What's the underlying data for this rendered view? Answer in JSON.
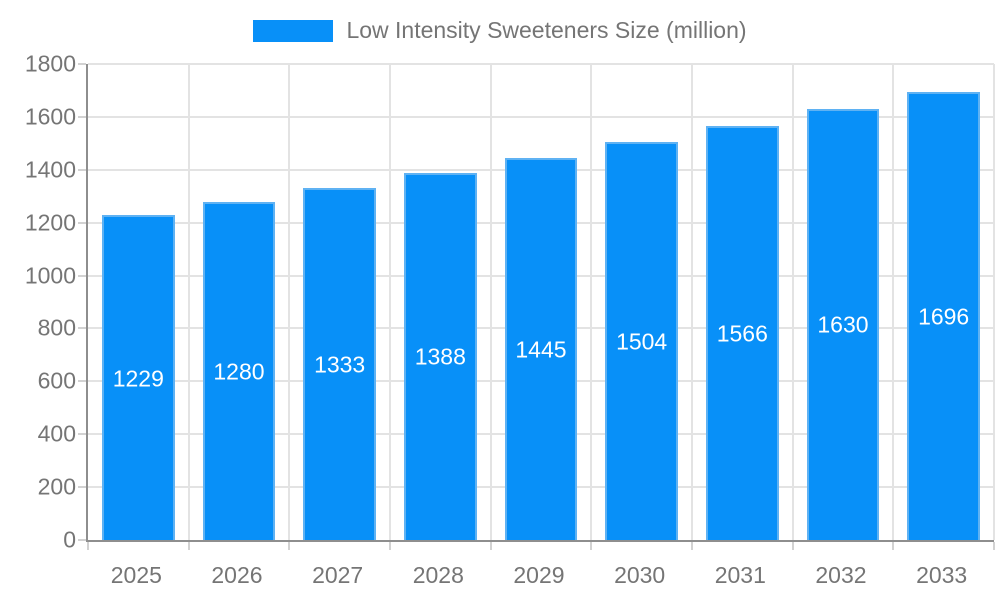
{
  "legend": {
    "label": "Low Intensity Sweeteners Size (million)",
    "swatch_color": "#0890F8"
  },
  "chart_data": {
    "type": "bar",
    "title": "Low Intensity Sweeteners Size (million)",
    "categories": [
      "2025",
      "2026",
      "2027",
      "2028",
      "2029",
      "2030",
      "2031",
      "2032",
      "2033"
    ],
    "values": [
      1229,
      1280,
      1333,
      1388,
      1445,
      1504,
      1566,
      1630,
      1696
    ],
    "xlabel": "",
    "ylabel": "",
    "ylim": [
      0,
      1800
    ],
    "ytick_step": 200,
    "yticks": [
      0,
      200,
      400,
      600,
      800,
      1000,
      1200,
      1400,
      1600,
      1800
    ],
    "grid": true,
    "legend_position": "top",
    "bar_color": "#0890F8",
    "bar_border_color": "#5FB2F3",
    "value_label_color": "#FFFFFF",
    "axis_text_color": "#757575",
    "grid_color": "#E3E3E3",
    "axis_line_color": "#8E8E8E"
  }
}
